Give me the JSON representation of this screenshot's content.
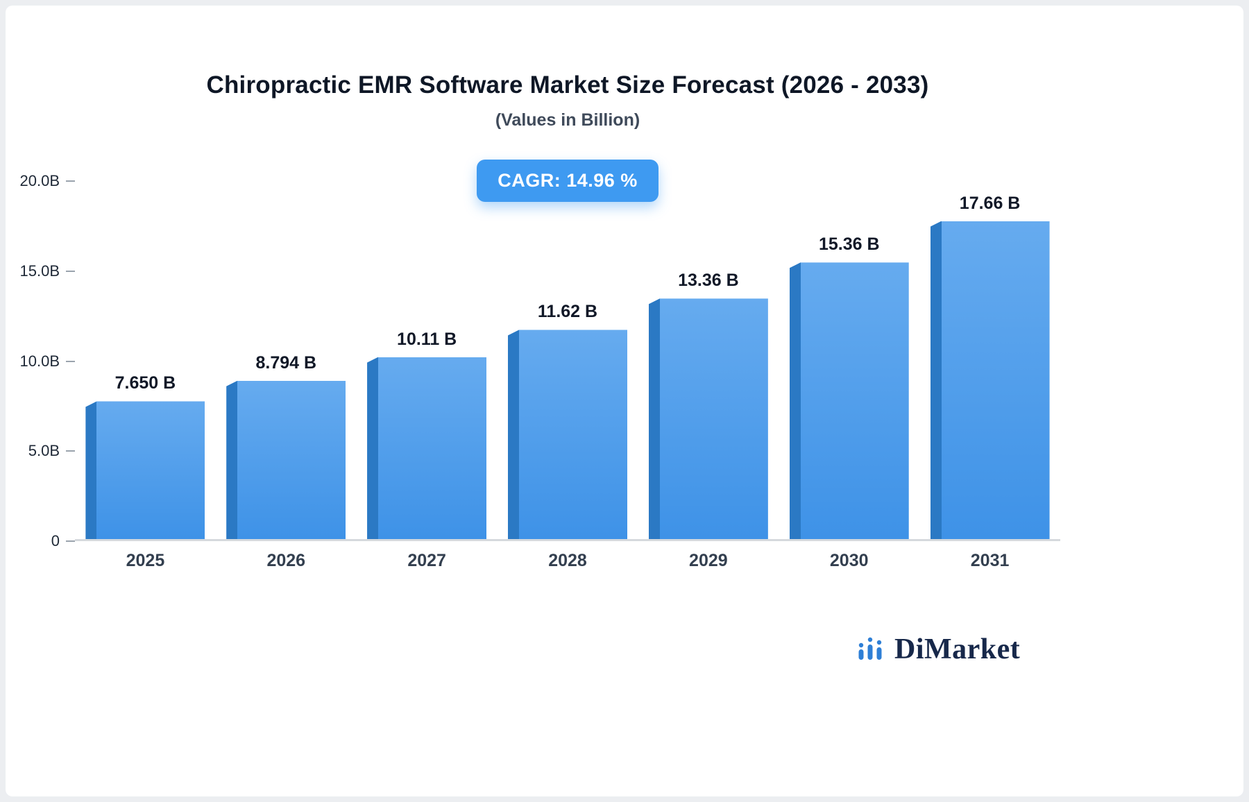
{
  "page": {
    "cagr_label": "CAGR: 14.96 %",
    "logo_text": "DiMarket",
    "logo_icon": "bar-chart-icon"
  },
  "chart_data": {
    "type": "bar",
    "title": "Chiropractic EMR Software Market Size Forecast (2026 - 2033)",
    "subtitle": "(Values in Billion)",
    "categories": [
      "2025",
      "2026",
      "2027",
      "2028",
      "2029",
      "2030",
      "2031"
    ],
    "values": [
      7.65,
      8.794,
      10.11,
      11.62,
      13.36,
      15.36,
      17.66
    ],
    "value_labels": [
      "7.650 B",
      "8.794 B",
      "10.11 B",
      "11.62 B",
      "13.36 B",
      "15.36 B",
      "17.66 B"
    ],
    "xlabel": "",
    "ylabel": "",
    "ylim": [
      0,
      20
    ],
    "yticks": [
      {
        "value": 0,
        "label": "0"
      },
      {
        "value": 5,
        "label": "5.0B"
      },
      {
        "value": 10,
        "label": "10.0B"
      },
      {
        "value": 15,
        "label": "15.0B"
      },
      {
        "value": 20,
        "label": "20.0B"
      }
    ],
    "grid": false,
    "legend": "none",
    "annotations": [
      "CAGR: 14.96 %"
    ],
    "bar_face_color": "#3e92e7",
    "bar_face_color_light": "#66abef",
    "bar_side_color": "#2b79c4",
    "badge_color": "#3e9af1"
  }
}
